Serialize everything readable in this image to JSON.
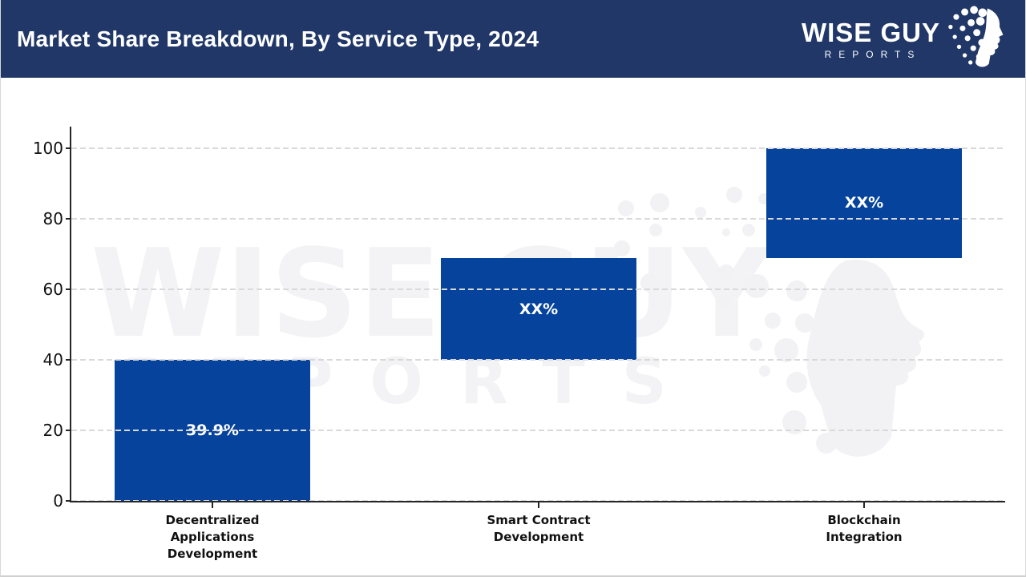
{
  "header": {
    "title": "Market Share Breakdown, By Service Type, 2024",
    "background_color": "#203767",
    "logo": {
      "line1": "WISE GUY",
      "line2": "REPORTS"
    }
  },
  "watermark": {
    "line1": "WISE GUY",
    "line2": "REPORTS"
  },
  "chart_data": {
    "type": "bar",
    "subtype": "waterfall",
    "title": "Market Share Breakdown, By Service Type, 2024",
    "xlabel": "",
    "ylabel": "",
    "categories": [
      "Decentralized\nApplications\nDevelopment",
      "Smart Contract\nDevelopment",
      "Blockchain\nIntegration"
    ],
    "segments": [
      {
        "start": 0,
        "end": 39.9,
        "label": "39.9%"
      },
      {
        "start": 39.9,
        "end": 68.9,
        "label": "XX%"
      },
      {
        "start": 68.9,
        "end": 100,
        "label": "XX%"
      }
    ],
    "yticks": [
      0,
      20,
      40,
      60,
      80,
      100
    ],
    "ylim": [
      0,
      105.7
    ],
    "grid": true,
    "legend": "none",
    "bar_color": "#05439C",
    "bar_label_color": "#ffffff",
    "gridline_color": "#d9d9d9",
    "axis_color": "#262626"
  }
}
